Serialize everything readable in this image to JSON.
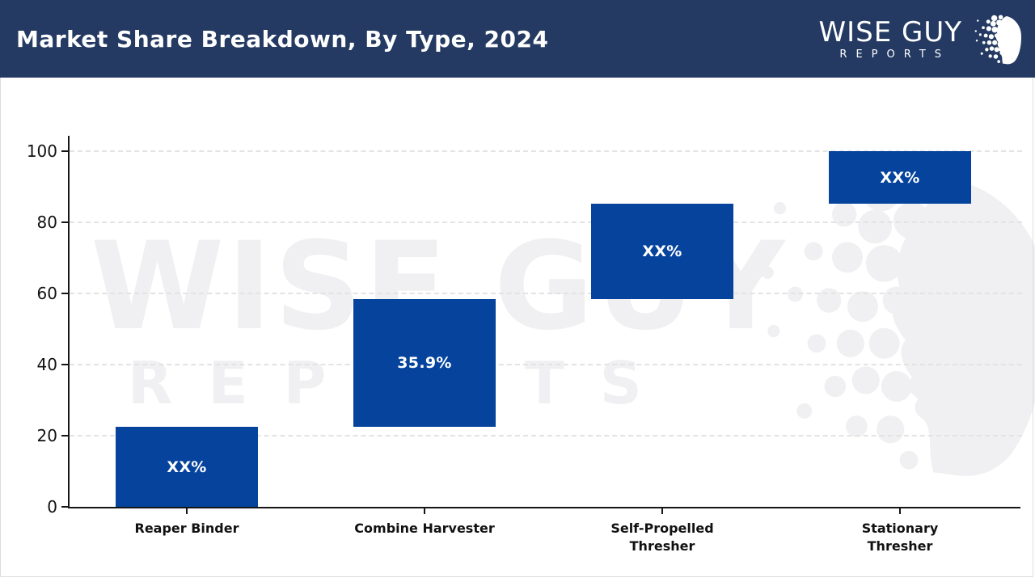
{
  "header": {
    "title": "Market Share Breakdown, By Type, 2024",
    "brand": {
      "line1": "WISE GUY",
      "line2": "REPORTS"
    },
    "bg_color": "#243a63"
  },
  "watermark": {
    "line1": "WISE GUY",
    "line2": "REPORTS"
  },
  "chart_data": {
    "type": "bar",
    "subtype": "floating-waterfall",
    "title": "Market Share Breakdown, By Type, 2024",
    "xlabel": "",
    "ylabel": "",
    "ylim": [
      0,
      100
    ],
    "yticks": [
      0,
      20,
      40,
      60,
      80,
      100
    ],
    "grid": "horizontal-dashed",
    "legend": "none",
    "bar_color": "#05439c",
    "categories": [
      "Reaper Binder",
      "Combine Harvester",
      "Self-Propelled Thresher",
      "Stationary Thresher"
    ],
    "tick_labels": [
      "Reaper Binder",
      "Combine Harvester",
      "Self-Propelled\nThresher",
      "Stationary\nThresher"
    ],
    "bars": [
      {
        "category": "Reaper Binder",
        "start": 0,
        "end": 22.4,
        "segment_value": 22.4,
        "label": "XX%"
      },
      {
        "category": "Combine Harvester",
        "start": 22.4,
        "end": 58.3,
        "segment_value": 35.9,
        "label": "35.9%"
      },
      {
        "category": "Self-Propelled Thresher",
        "start": 58.3,
        "end": 85.2,
        "segment_value": 26.9,
        "label": "XX%"
      },
      {
        "category": "Stationary Thresher",
        "start": 85.2,
        "end": 100,
        "segment_value": 14.8,
        "label": "XX%"
      }
    ]
  }
}
